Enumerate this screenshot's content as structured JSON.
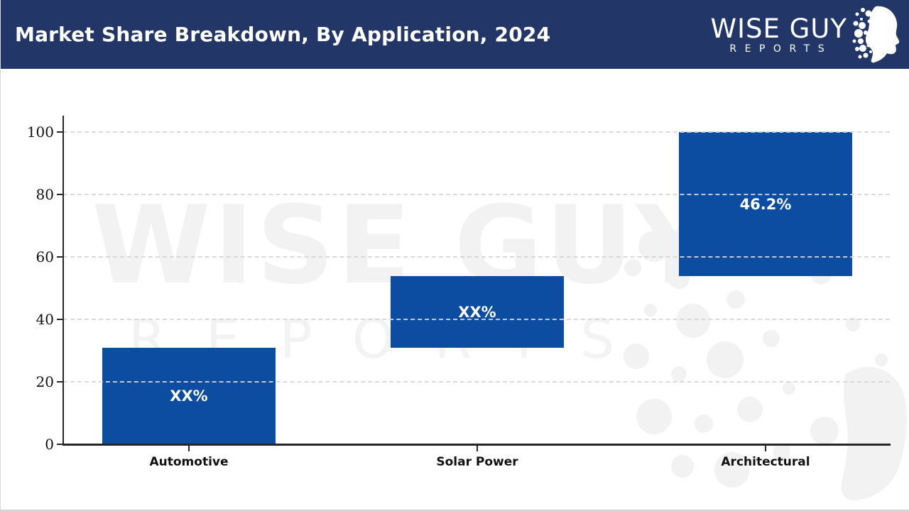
{
  "header": {
    "title": "Market Share Breakdown, By Application, 2024",
    "bg_color": "#223767",
    "logo": {
      "line1": "WISE GUY",
      "line2": "REPORTS"
    }
  },
  "watermark": {
    "line1": "WISE GUY",
    "line2": "REPORTS"
  },
  "chart_data": {
    "type": "bar",
    "subtype": "stacked-breakdown-waterfall",
    "title": "Market Share Breakdown, By Application, 2024",
    "categories": [
      "Automotive",
      "Solar Power",
      "Architectural"
    ],
    "series": [
      {
        "name": "Market Share (%)",
        "segments": [
          {
            "category": "Automotive",
            "start": 0,
            "end": 30.8,
            "label": "XX%"
          },
          {
            "category": "Solar Power",
            "start": 30.8,
            "end": 53.8,
            "label": "XX%"
          },
          {
            "category": "Architectural",
            "start": 53.8,
            "end": 100,
            "label": "46.2%"
          }
        ]
      }
    ],
    "xlabel": "",
    "ylabel": "",
    "yticks": [
      0,
      20,
      40,
      60,
      80,
      100
    ],
    "ylim": [
      0,
      105
    ],
    "grid": "horizontal-dashed",
    "grid_above_bars": true,
    "legend": "none",
    "bar_color": "#0C4DA2",
    "bar_label_color": "#ffffff",
    "axis_color": "#262626",
    "gridline_color": "#d6d6d6"
  }
}
